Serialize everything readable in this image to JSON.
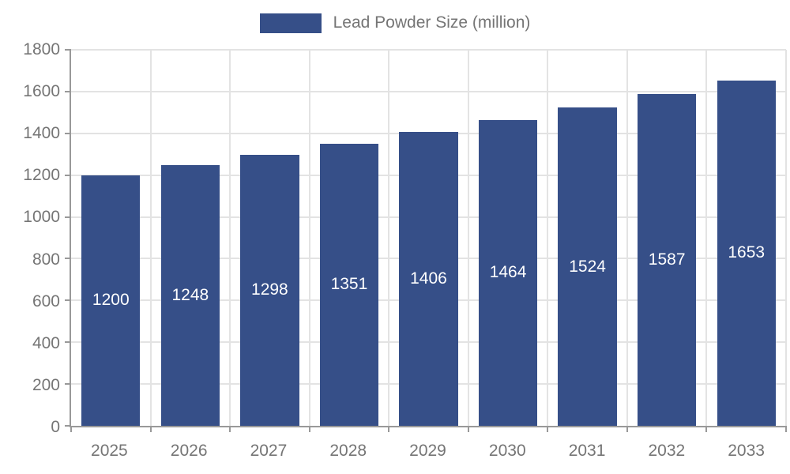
{
  "legend": {
    "label": "Lead Powder Size (million)",
    "swatch_color": "#364F88"
  },
  "colors": {
    "bar": "#364F88",
    "grid": "#E3E3E3",
    "axis": "#999999",
    "tick_text": "#757575",
    "value_label": "#FFFFFF",
    "background": "#FFFFFF"
  },
  "chart_data": {
    "type": "bar",
    "title": "Lead Powder Size (million)",
    "categories": [
      "2025",
      "2026",
      "2027",
      "2028",
      "2029",
      "2030",
      "2031",
      "2032",
      "2033"
    ],
    "series": [
      {
        "name": "Lead Powder Size (million)",
        "values": [
          1200,
          1248,
          1298,
          1351,
          1406,
          1464,
          1524,
          1587,
          1653
        ]
      }
    ],
    "xlabel": "",
    "ylabel": "",
    "ylim": [
      0,
      1800
    ],
    "ytick_step": 200,
    "grid": true,
    "legend_position": "top-center",
    "value_labels": "inside-vertical-center"
  }
}
